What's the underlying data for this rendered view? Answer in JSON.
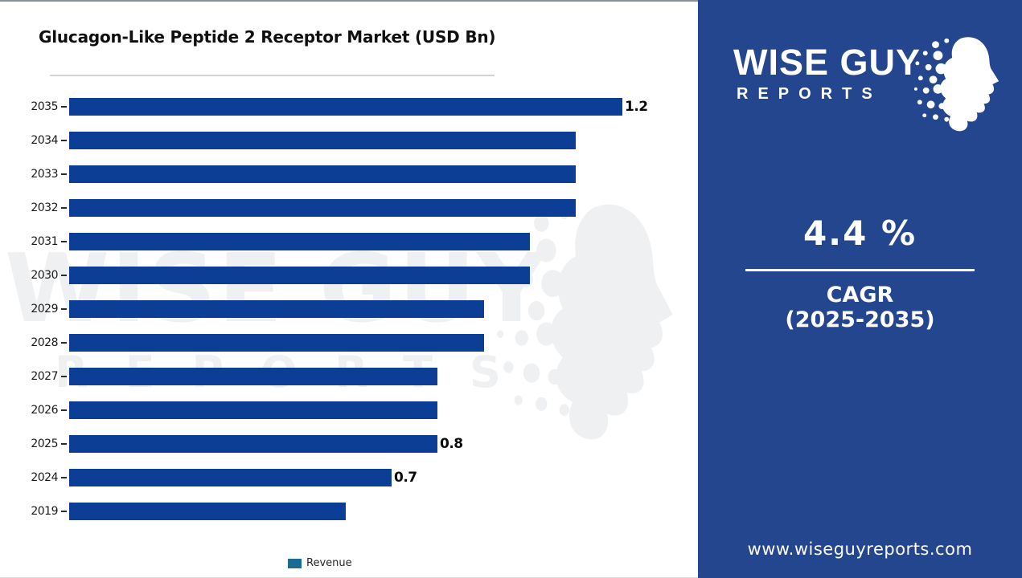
{
  "header": {
    "title": "Glucagon-Like Peptide 2 Receptor Market (USD Bn)"
  },
  "chart_data": {
    "type": "bar",
    "orientation": "horizontal",
    "title": "Glucagon-Like Peptide 2 Receptor Market (USD Bn)",
    "xlabel": "",
    "ylabel": "",
    "categories": [
      "2035",
      "2034",
      "2033",
      "2032",
      "2031",
      "2030",
      "2029",
      "2028",
      "2027",
      "2026",
      "2025",
      "2024",
      "2019"
    ],
    "values": [
      1.2,
      1.1,
      1.1,
      1.1,
      1.0,
      1.0,
      0.9,
      0.9,
      0.8,
      0.8,
      0.8,
      0.7,
      0.6
    ],
    "data_labels": {
      "2035": "1.2",
      "2025": "0.8",
      "2024": "0.7"
    },
    "xlim": [
      0,
      1.25
    ],
    "grid": false,
    "bar_color": "#0d3e96",
    "legend": {
      "position": "bottom-center",
      "entries": [
        {
          "label": "Revenue",
          "color": "#1d6a95"
        }
      ]
    }
  },
  "legend": {
    "label": "Revenue"
  },
  "watermark": {
    "line1": "WISE GUY",
    "line2": "REPORTS"
  },
  "brand_panel": {
    "bg_color": "#24468e",
    "logo_line1": "WISE GUY",
    "logo_line2": "REPORTS",
    "cagr_value": "4.4 %",
    "cagr_label": "CAGR",
    "cagr_period": "(2025-2035)",
    "website": "www.wiseguyreports.com"
  },
  "colors": {
    "bar": "#0d3e96",
    "legend_swatch": "#1d6a95",
    "panel_bg": "#24468e",
    "title_text": "#101010",
    "watermark": "#eff0f2",
    "top_border": "#8a9097"
  }
}
